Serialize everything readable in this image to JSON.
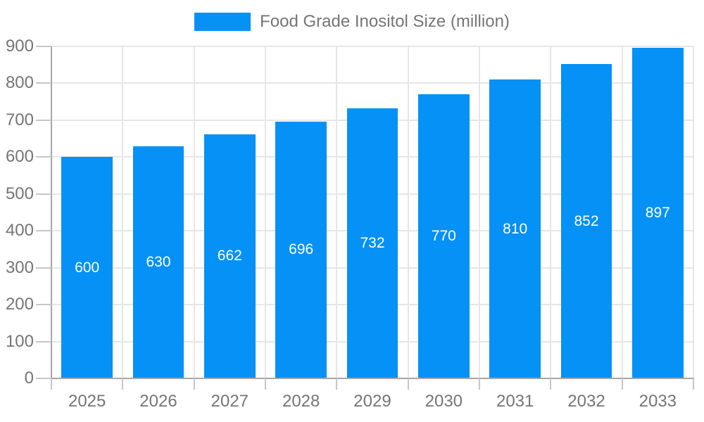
{
  "legend": {
    "label": "Food Grade Inositol Size (million)"
  },
  "chart_data": {
    "type": "bar",
    "title": "",
    "xlabel": "",
    "ylabel": "",
    "legend_entries": [
      "Food Grade Inositol Size (million)"
    ],
    "legend_position": "top",
    "categories": [
      "2025",
      "2026",
      "2027",
      "2028",
      "2029",
      "2030",
      "2031",
      "2032",
      "2033"
    ],
    "values": [
      600,
      630,
      662,
      696,
      732,
      770,
      810,
      852,
      897
    ],
    "value_labels": [
      "600",
      "630",
      "662",
      "696",
      "732",
      "770",
      "810",
      "852",
      "897"
    ],
    "ylim": [
      0,
      900
    ],
    "yticks": [
      0,
      100,
      200,
      300,
      400,
      500,
      600,
      700,
      800,
      900
    ],
    "grid": true,
    "colors": {
      "bar": "#0591f5",
      "value_label_text": "#ffffff",
      "axis_text": "#757575",
      "gridline": "#e6e6e6",
      "axis_line": "#a6a6a6",
      "tick": "#c6c6c6",
      "background": "#ffffff"
    }
  }
}
